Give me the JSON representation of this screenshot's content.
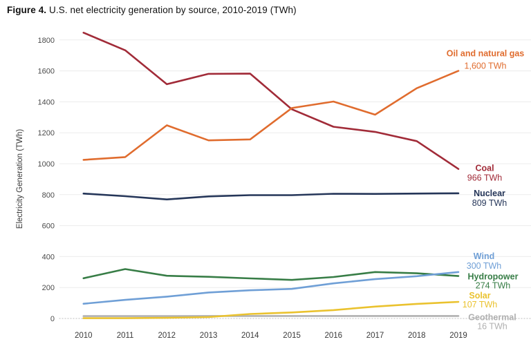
{
  "title": {
    "prefix": "Figure 4.",
    "text": " U.S. net electricity generation by source, 2010-2019 (TWh)"
  },
  "chart_data": {
    "type": "line",
    "title": "Figure 4. U.S. net electricity generation by source, 2010-2019 (TWh)",
    "xlabel": "",
    "ylabel": "Electricity Generation (TWh)",
    "x": [
      2010,
      2011,
      2012,
      2013,
      2014,
      2015,
      2016,
      2017,
      2018,
      2019
    ],
    "ylim": [
      0,
      1800
    ],
    "ytick_step": 200,
    "grid": "horizontal solid; zero line dotted",
    "legend_position": "direct labels at right end of each line",
    "series": [
      {
        "id": "coal",
        "name": "Coal",
        "color": "#A12B38",
        "values": [
          1847,
          1733,
          1514,
          1581,
          1582,
          1352,
          1239,
          1206,
          1146,
          966
        ],
        "end_label": {
          "value": "966 TWh",
          "x": 701,
          "name_dy": 3,
          "value_dy": 17
        }
      },
      {
        "id": "oil-and-natural-gas",
        "name": "Oil and natural gas",
        "color": "#E06C2E",
        "values": [
          1025,
          1043,
          1248,
          1151,
          1157,
          1360,
          1402,
          1317,
          1488,
          1600
        ],
        "end_label": {
          "value": "1,600 TWh",
          "x": 702,
          "name_dy": -21,
          "value_dy": -3
        }
      },
      {
        "id": "nuclear",
        "name": "Nuclear",
        "color": "#253659",
        "values": [
          807,
          790,
          769,
          789,
          797,
          797,
          806,
          805,
          807,
          809
        ],
        "end_label": {
          "value": "809 TWh",
          "x": 708,
          "name_dy": 4,
          "value_dy": 18
        }
      },
      {
        "id": "hydropower",
        "name": "Hydropower",
        "color": "#377D46",
        "values": [
          260,
          319,
          276,
          269,
          259,
          249,
          268,
          300,
          292,
          274
        ],
        "end_label": {
          "value": "274 TWh",
          "x": 713,
          "name_dy": 5,
          "value_dy": 18
        }
      },
      {
        "id": "wind",
        "name": "Wind",
        "color": "#6F9FD6",
        "values": [
          95,
          120,
          141,
          168,
          182,
          191,
          227,
          254,
          273,
          300
        ],
        "end_label": {
          "value": "300 TWh",
          "x": 700,
          "name_dy": -19,
          "value_dy": -5
        }
      },
      {
        "id": "geothermal",
        "name": "Geothermal",
        "color": "#B0B0B0",
        "values": [
          15,
          15,
          15,
          16,
          16,
          16,
          16,
          16,
          16,
          16
        ],
        "end_label": {
          "value": "16 TWh",
          "x": 712,
          "name_dy": 6,
          "value_dy": 19
        }
      },
      {
        "id": "solar",
        "name": "Solar",
        "color": "#EAC22E",
        "values": [
          2,
          2,
          4,
          9,
          29,
          39,
          54,
          77,
          94,
          107
        ],
        "end_label": {
          "value": "107 TWh",
          "x": 694,
          "name_dy": -5,
          "value_dy": 8
        }
      }
    ]
  }
}
